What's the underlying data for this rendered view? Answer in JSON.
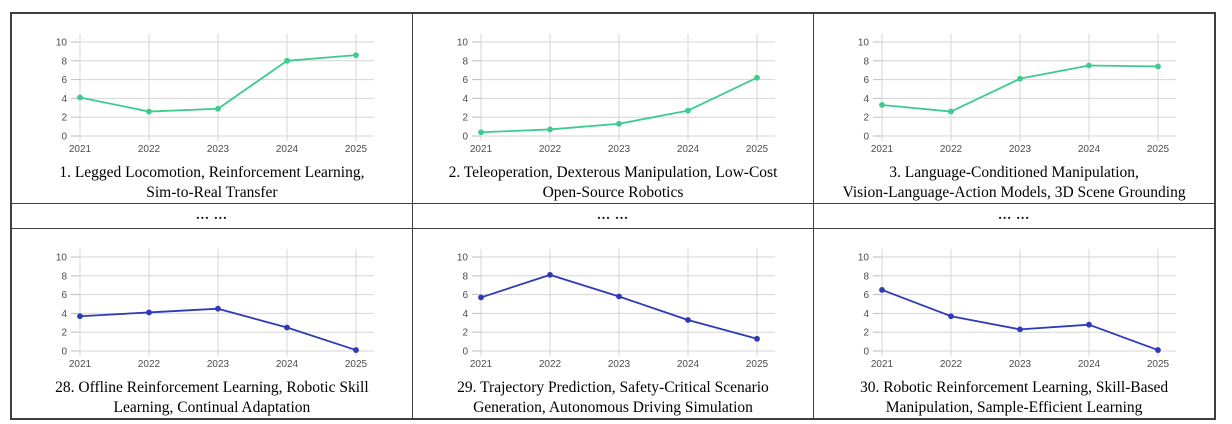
{
  "page": {
    "background": "#ffffff"
  },
  "style": {
    "border_color": "#3f3f3f",
    "grid_color": "#d6d6d6",
    "tick_mark_color": "#bdbdbd",
    "tick_label_color": "#4c4c4c",
    "green_line": "#3ecb8d",
    "blue_line": "#2e3ab8"
  },
  "separator": {
    "label": "... ..."
  },
  "chart_data": [
    {
      "type": "line",
      "x": [
        2021,
        2022,
        2023,
        2024,
        2025
      ],
      "values": [
        4.1,
        2.6,
        2.9,
        8.0,
        8.6
      ],
      "color": "#3ecb8d",
      "ylim": [
        0,
        10
      ],
      "yticks": [
        0,
        2,
        4,
        6,
        8,
        10
      ],
      "grid": true,
      "legend": "none",
      "caption_lines": [
        "1. Legged Locomotion, Reinforcement Learning,",
        "Sim-to-Real Transfer"
      ]
    },
    {
      "type": "line",
      "x": [
        2021,
        2022,
        2023,
        2024,
        2025
      ],
      "values": [
        0.4,
        0.7,
        1.3,
        2.7,
        6.2
      ],
      "color": "#3ecb8d",
      "ylim": [
        0,
        10
      ],
      "yticks": [
        0,
        2,
        4,
        6,
        8,
        10
      ],
      "grid": true,
      "legend": "none",
      "caption_lines": [
        "2. Teleoperation, Dexterous Manipulation, Low-Cost",
        "Open-Source Robotics"
      ]
    },
    {
      "type": "line",
      "x": [
        2021,
        2022,
        2023,
        2024,
        2025
      ],
      "values": [
        3.3,
        2.6,
        6.1,
        7.5,
        7.4
      ],
      "color": "#3ecb8d",
      "ylim": [
        0,
        10
      ],
      "yticks": [
        0,
        2,
        4,
        6,
        8,
        10
      ],
      "grid": true,
      "legend": "none",
      "caption_lines": [
        "3. Language-Conditioned Manipulation,",
        "Vision-Language-Action Models, 3D Scene Grounding"
      ]
    },
    {
      "type": "line",
      "x": [
        2021,
        2022,
        2023,
        2024,
        2025
      ],
      "values": [
        3.7,
        4.1,
        4.5,
        2.5,
        0.1
      ],
      "color": "#2e3ab8",
      "ylim": [
        0,
        10
      ],
      "yticks": [
        0,
        2,
        4,
        6,
        8,
        10
      ],
      "grid": true,
      "legend": "none",
      "caption_lines": [
        "28. Offline Reinforcement Learning, Robotic Skill",
        "Learning, Continual Adaptation"
      ]
    },
    {
      "type": "line",
      "x": [
        2021,
        2022,
        2023,
        2024,
        2025
      ],
      "values": [
        5.7,
        8.1,
        5.8,
        3.3,
        1.3
      ],
      "color": "#2e3ab8",
      "ylim": [
        0,
        10
      ],
      "yticks": [
        0,
        2,
        4,
        6,
        8,
        10
      ],
      "grid": true,
      "legend": "none",
      "caption_lines": [
        "29. Trajectory Prediction, Safety-Critical Scenario",
        "Generation, Autonomous Driving Simulation"
      ]
    },
    {
      "type": "line",
      "x": [
        2021,
        2022,
        2023,
        2024,
        2025
      ],
      "values": [
        6.5,
        3.7,
        2.3,
        2.8,
        0.1
      ],
      "color": "#2e3ab8",
      "ylim": [
        0,
        10
      ],
      "yticks": [
        0,
        2,
        4,
        6,
        8,
        10
      ],
      "grid": true,
      "legend": "none",
      "caption_lines": [
        "30. Robotic Reinforcement Learning, Skill-Based",
        "Manipulation, Sample-Efficient Learning"
      ]
    }
  ]
}
